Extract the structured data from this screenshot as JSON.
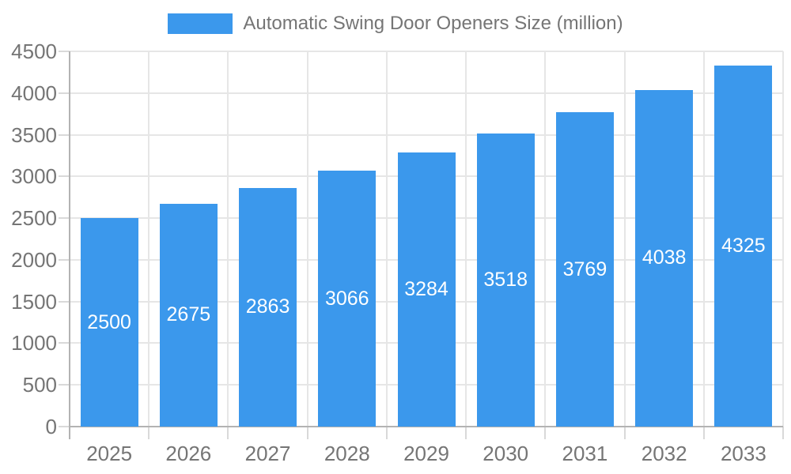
{
  "chart_data": {
    "type": "bar",
    "title": "Automatic Swing Door Openers Size (million)",
    "categories": [
      "2025",
      "2026",
      "2027",
      "2028",
      "2029",
      "2030",
      "2031",
      "2032",
      "2033"
    ],
    "values": [
      2500,
      2675,
      2863,
      3066,
      3284,
      3518,
      3769,
      4038,
      4325
    ],
    "value_labels": [
      "2500",
      "2675",
      "2863",
      "3066",
      "3284",
      "3518",
      "3769",
      "4038",
      "4325"
    ],
    "xlabel": "",
    "ylabel": "",
    "ylim": [
      0,
      4500
    ],
    "yticks": [
      0,
      500,
      1000,
      1500,
      2000,
      2500,
      3000,
      3500,
      4000,
      4500
    ],
    "grid": true,
    "legend_position": "top",
    "legend_label": "Automatic Swing Door Openers Size (million)",
    "colors": {
      "bar": "#3b98ec",
      "value_label": "#ffffff",
      "gridline": "#e6e6e6",
      "axis_line": "#b3b3b3",
      "tick_mark": "#d9d9d9",
      "tick_label": "#757575",
      "legend_text": "#757575",
      "background": "#ffffff"
    }
  }
}
